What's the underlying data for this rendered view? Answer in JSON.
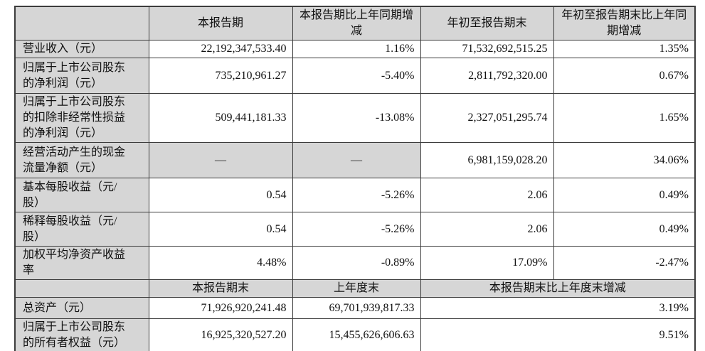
{
  "table": {
    "header1": [
      "",
      "本报告期",
      "本报告期比上年同期增减",
      "年初至报告期末",
      "年初至报告期末比上年同期增减"
    ],
    "rows1": [
      {
        "label": "营业收入（元）",
        "cells": [
          "22,192,347,533.40",
          "1.16%",
          "71,532,692,515.25",
          "1.35%"
        ],
        "shaded_cells": []
      },
      {
        "label": "归属于上市公司股东的净利润（元）",
        "cells": [
          "735,210,961.27",
          "-5.40%",
          "2,811,792,320.00",
          "0.67%"
        ],
        "shaded_cells": []
      },
      {
        "label": "归属于上市公司股东的扣除非经常性损益的净利润（元）",
        "cells": [
          "509,441,181.33",
          "-13.08%",
          "2,327,051,295.74",
          "1.65%"
        ],
        "shaded_cells": []
      },
      {
        "label": "经营活动产生的现金流量净额（元）",
        "cells": [
          "—",
          "—",
          "6,981,159,028.20",
          "34.06%"
        ],
        "shaded_cells": [
          0,
          1
        ]
      },
      {
        "label": "基本每股收益（元/股）",
        "cells": [
          "0.54",
          "-5.26%",
          "2.06",
          "0.49%"
        ],
        "shaded_cells": []
      },
      {
        "label": "稀释每股收益（元/股）",
        "cells": [
          "0.54",
          "-5.26%",
          "2.06",
          "0.49%"
        ],
        "shaded_cells": []
      },
      {
        "label": "加权平均净资产收益率",
        "cells": [
          "4.48%",
          "-0.89%",
          "17.09%",
          "-2.47%"
        ],
        "shaded_cells": []
      }
    ],
    "header2": [
      "",
      "本报告期末",
      "上年度末",
      "本报告期末比上年度末增减"
    ],
    "rows2": [
      {
        "label": "总资产（元）",
        "cells": [
          "71,926,920,241.48",
          "69,701,939,817.33",
          "3.19%"
        ]
      },
      {
        "label": "归属于上市公司股东的所有者权益（元）",
        "cells": [
          "16,925,320,527.20",
          "15,455,626,606.63",
          "9.51%"
        ]
      }
    ]
  },
  "colors": {
    "cell_shade": "#d6d6d6",
    "border": "#3c3c3c",
    "text": "#111111"
  }
}
